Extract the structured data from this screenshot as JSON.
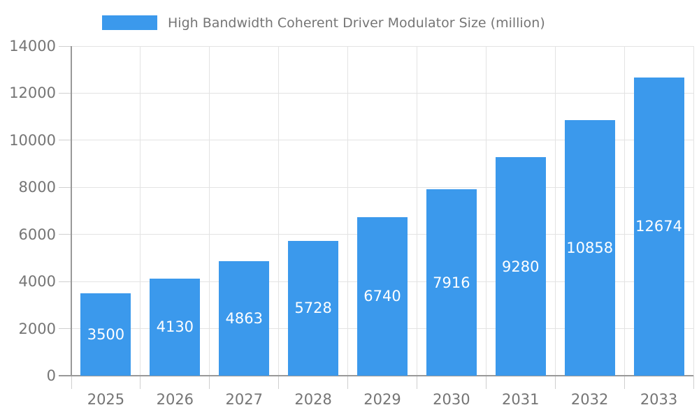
{
  "chart_data": {
    "type": "bar",
    "title": "High Bandwidth Coherent Driver Modulator Size (million)",
    "categories": [
      "2025",
      "2026",
      "2027",
      "2028",
      "2029",
      "2030",
      "2031",
      "2032",
      "2033"
    ],
    "series": [
      {
        "name": "High Bandwidth Coherent Driver Modulator Size (million)",
        "values": [
          3500,
          4130,
          4863,
          5728,
          6740,
          7916,
          9280,
          10858,
          12674
        ]
      }
    ],
    "xlabel": "",
    "ylabel": "",
    "ylim": [
      0,
      14000
    ],
    "y_ticks": [
      0,
      2000,
      4000,
      6000,
      8000,
      10000,
      12000,
      14000
    ],
    "grid": true,
    "legend_position": "top",
    "bar_labels_visible": true,
    "colors": {
      "bar": "#3B99EC",
      "bar_label": "#ffffff",
      "axis_text": "#757575",
      "axis_line": "#999999",
      "gridline": "#e3e3e3",
      "tick": "#cfcfcf",
      "background": "#ffffff"
    }
  }
}
